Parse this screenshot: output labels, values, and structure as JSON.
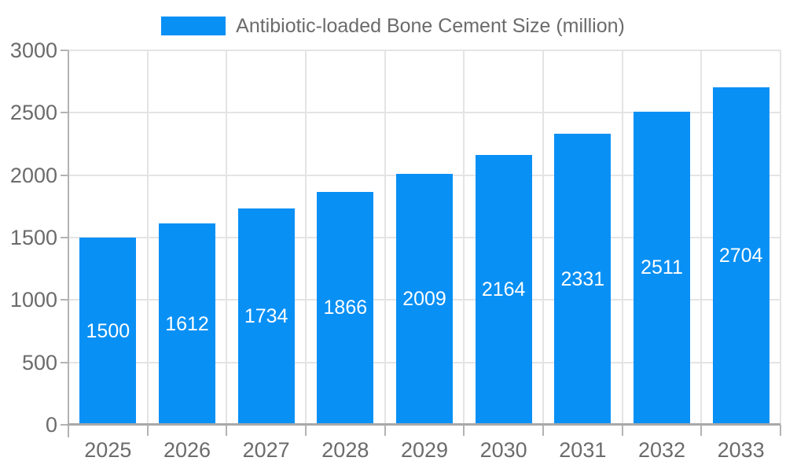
{
  "legend": {
    "label": "Antibiotic-loaded Bone Cement Size (million)"
  },
  "colors": {
    "bar": "#0890f5",
    "grid": "#e4e4e4",
    "axis": "#b3b3b3",
    "baseline": "#a8a8a8",
    "text": "#6b6b6b",
    "valueText": "#ffffff"
  },
  "chart_data": {
    "type": "bar",
    "title": "Antibiotic-loaded Bone Cement Size (million)",
    "categories": [
      "2025",
      "2026",
      "2027",
      "2028",
      "2029",
      "2030",
      "2031",
      "2032",
      "2033"
    ],
    "values": [
      1500,
      1612,
      1734,
      1866,
      2009,
      2164,
      2331,
      2511,
      2704
    ],
    "xlabel": "",
    "ylabel": "",
    "ylim": [
      0,
      3000
    ],
    "yticks": [
      0,
      500,
      1000,
      1500,
      2000,
      2500,
      3000
    ],
    "grid": true,
    "legend_position": "top",
    "value_label_position": "inside-center"
  }
}
